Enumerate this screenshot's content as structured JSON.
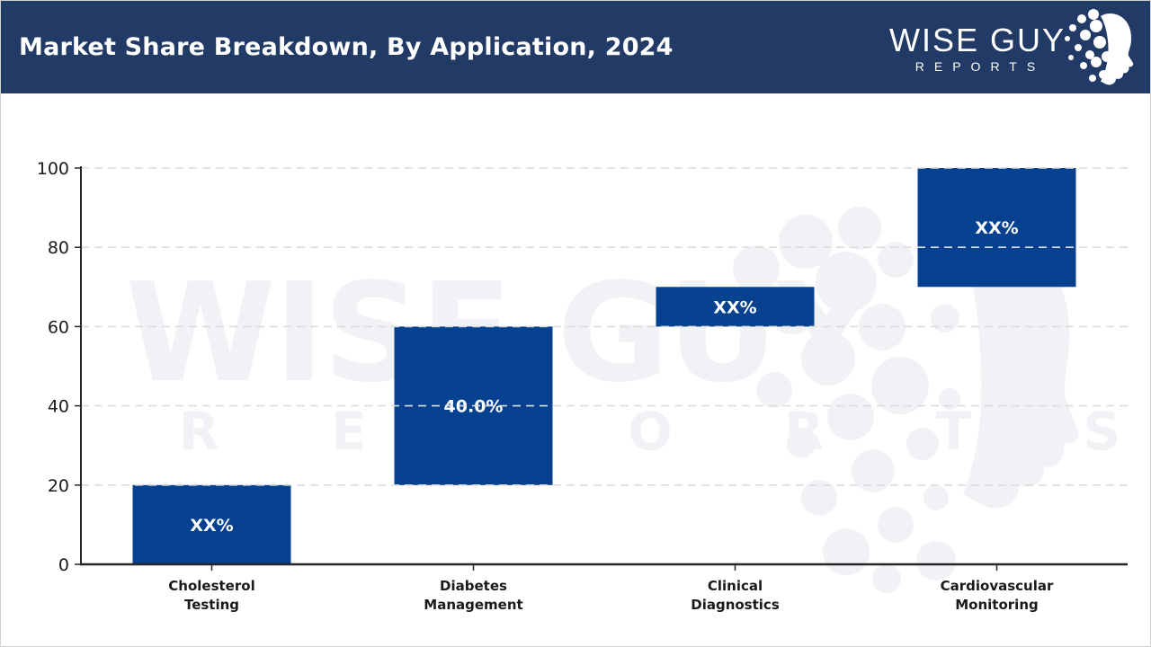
{
  "header": {
    "title": "Market Share Breakdown, By Application, 2024",
    "brand": {
      "name": "WISE GUY",
      "subtitle": "REPORTS"
    }
  },
  "watermark": {
    "line1": "WISE GUY",
    "line2": "R E P O R T S"
  },
  "colors": {
    "header_bg": "#213a66",
    "bar": "#05418F",
    "axis": "#262626",
    "grid": "#dcdcdc",
    "bar_label": "#ffffff",
    "tick_label": "#1a1a1a",
    "watermark": "#f0f2f5"
  },
  "chart_data": {
    "type": "bar",
    "subtype": "floating-segment (waterfall style market share)",
    "title": "Market Share Breakdown, By Application, 2024",
    "categories": [
      "Cholesterol Testing",
      "Diabetes Management",
      "Clinical Diagnostics",
      "Cardiovascular Monitoring"
    ],
    "category_lines": [
      [
        "Cholesterol",
        "Testing"
      ],
      [
        "Diabetes",
        "Management"
      ],
      [
        "Clinical",
        "Diagnostics"
      ],
      [
        "Cardiovascular",
        "Monitoring"
      ]
    ],
    "segments": [
      {
        "category": "Cholesterol Testing",
        "start": 0,
        "end": 20,
        "label": "XX%"
      },
      {
        "category": "Diabetes Management",
        "start": 20,
        "end": 60,
        "label": "40.0%"
      },
      {
        "category": "Clinical Diagnostics",
        "start": 60,
        "end": 70,
        "label": "XX%"
      },
      {
        "category": "Cardiovascular Monitoring",
        "start": 70,
        "end": 100,
        "label": "XX%"
      }
    ],
    "xlabel": "",
    "ylabel": "",
    "ylim": [
      0,
      100
    ],
    "yticks": [
      0,
      20,
      40,
      60,
      80,
      100
    ],
    "grid": "horizontal dashed",
    "legend": null
  }
}
